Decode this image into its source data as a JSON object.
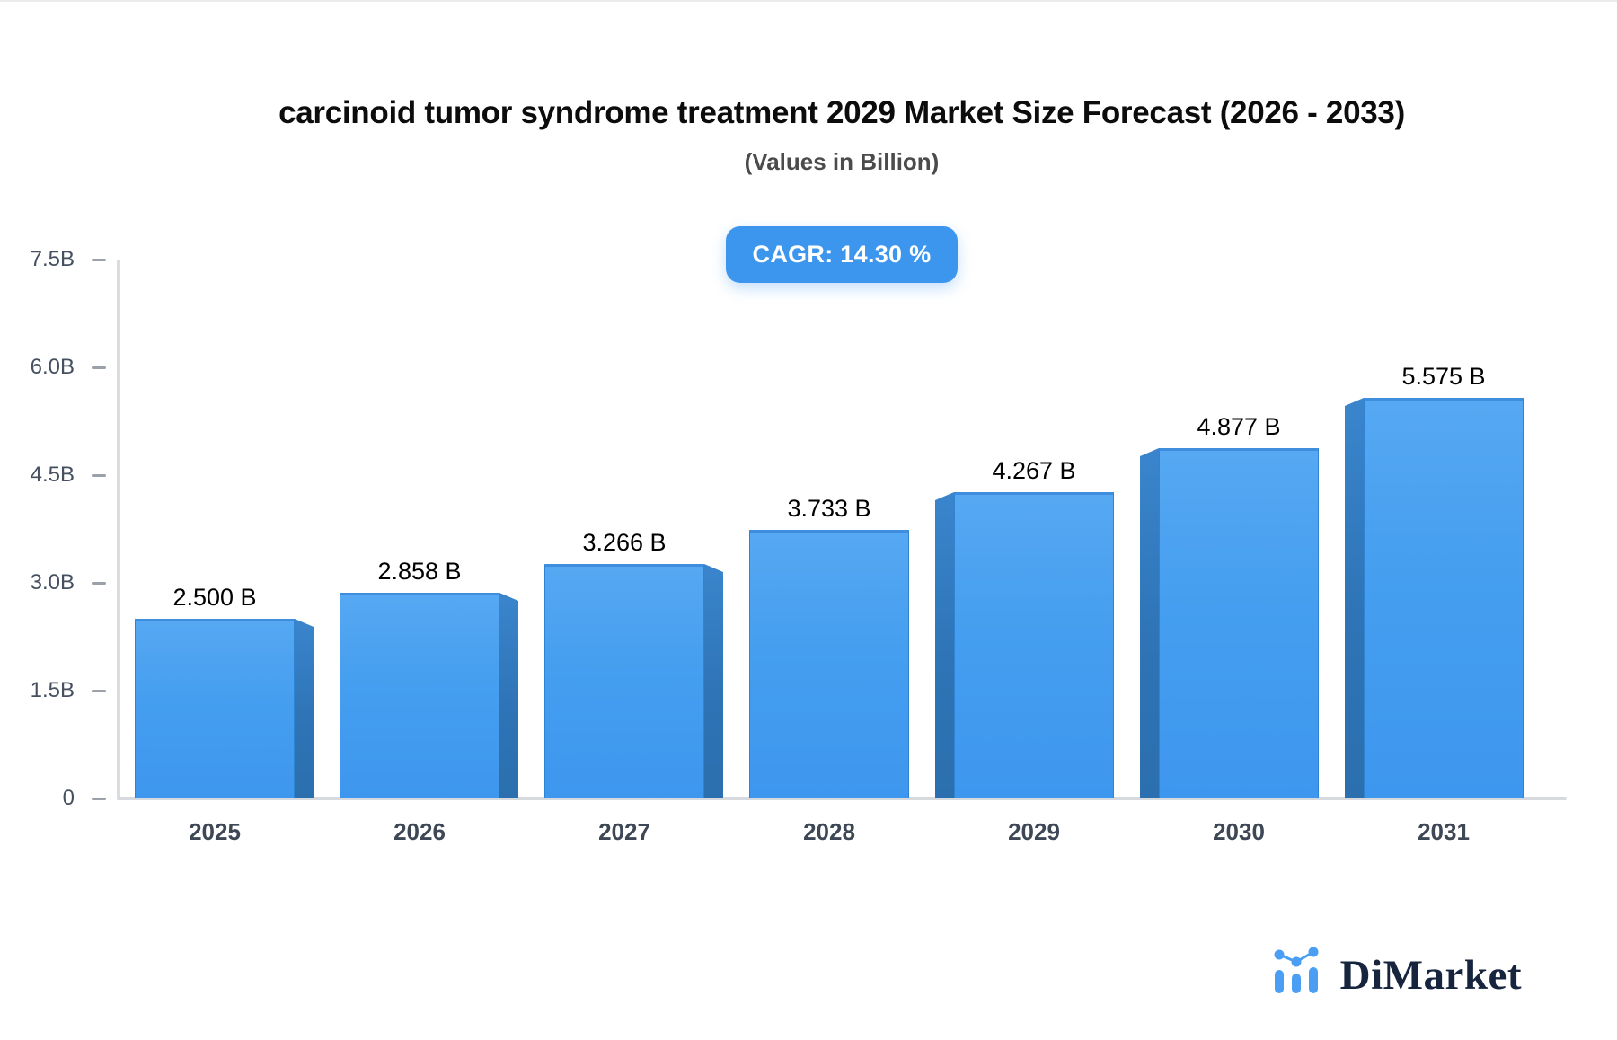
{
  "chart_data": {
    "type": "bar",
    "title": "carcinoid tumor syndrome treatment 2029 Market Size Forecast (2026 - 2033)",
    "subtitle": "(Values in Billion)",
    "cagr_text": "CAGR: 14.30 %",
    "categories": [
      "2025",
      "2026",
      "2027",
      "2028",
      "2029",
      "2030",
      "2031"
    ],
    "values": [
      2.5,
      2.858,
      3.266,
      3.733,
      4.267,
      4.877,
      5.575
    ],
    "value_labels": [
      "2.500 B",
      "2.858 B",
      "3.266 B",
      "3.733 B",
      "4.267 B",
      "4.877 B",
      "5.575 B"
    ],
    "xlabel": "",
    "ylabel": "",
    "ylim": [
      0,
      7.5
    ],
    "ytick_values": [
      0,
      1.5,
      3.0,
      4.5,
      6.0,
      7.5
    ],
    "ytick_labels": [
      "0",
      "1.5B",
      "3.0B",
      "4.5B",
      "6.0B",
      "7.5B"
    ],
    "grid": false,
    "legend_position": "none",
    "colors": {
      "bar_front": "#429bef",
      "bar_side": "#2e74b6",
      "badge_background": "#3d96ee",
      "badge_text": "#ffffff",
      "axis_line": "#d6d9de",
      "tick_text": "#46505f",
      "category_text": "#3e4755",
      "value_text": "#000000"
    }
  },
  "branding": {
    "logo_text": "DiMarket",
    "logo_icon": "bar-chart-with-trend-dots-icon",
    "logo_icon_color": "#4a9ff5",
    "logo_text_color": "#16243e"
  }
}
